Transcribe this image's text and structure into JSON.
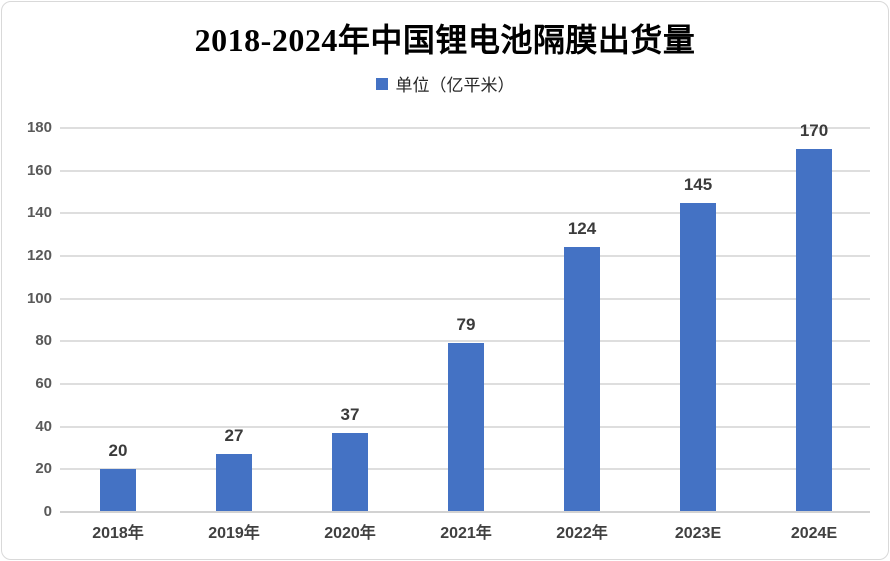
{
  "window": {
    "background": "#ffffff",
    "border_color": "#d9d9d9"
  },
  "chart_data": {
    "type": "bar",
    "title": "2018-2024年中国锂电池隔膜出货量",
    "legend": {
      "label": "单位（亿平米）",
      "marker_color": "#4472C4",
      "position": "top-center"
    },
    "categories": [
      "2018年",
      "2019年",
      "2020年",
      "2021年",
      "2022年",
      "2023E",
      "2024E"
    ],
    "values": [
      20,
      27,
      37,
      79,
      124,
      145,
      170
    ],
    "bar_color": "#4472C4",
    "data_labels": true,
    "xlabel": "",
    "ylabel": "",
    "ylim": [
      0,
      180
    ],
    "yticks": [
      0,
      20,
      40,
      60,
      80,
      100,
      120,
      140,
      160,
      180
    ],
    "grid": true,
    "gridline_color": "#dedede",
    "axis_line_color": "#d2d2d2",
    "ytick_color": "#595959",
    "xtick_color": "#404040",
    "value_label_color": "#3b3b3b"
  }
}
